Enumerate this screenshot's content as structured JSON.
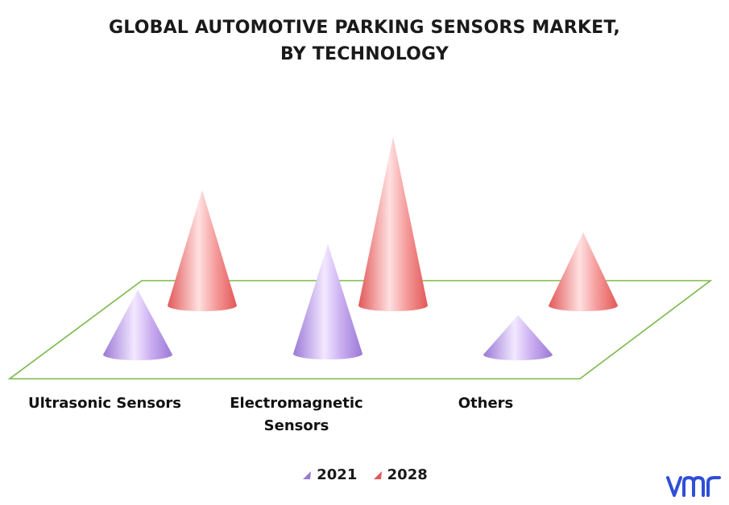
{
  "chart_data": {
    "type": "bar",
    "title": "GLOBAL AUTOMOTIVE PARKING SENSORS MARKET,",
    "title_line2": "BY TECHNOLOGY",
    "categories": [
      "Ultrasonic Sensors",
      "Electromagnetic Sensors",
      "Others"
    ],
    "category_lines": [
      [
        "Ultrasonic Sensors"
      ],
      [
        "Electromagnetic",
        "Sensors"
      ],
      [
        "Others"
      ]
    ],
    "series": [
      {
        "name": "2021",
        "values": [
          2.3,
          3.9,
          1.4
        ],
        "color": "#b58ee6"
      },
      {
        "name": "2028",
        "values": [
          4.1,
          6.0,
          2.6
        ],
        "color": "#f07878"
      }
    ],
    "ylim": [
      0,
      6.5
    ],
    "legend_position": "bottom",
    "grid": false
  },
  "logo": {
    "text": "vmr",
    "color": "#2f4fd6"
  }
}
